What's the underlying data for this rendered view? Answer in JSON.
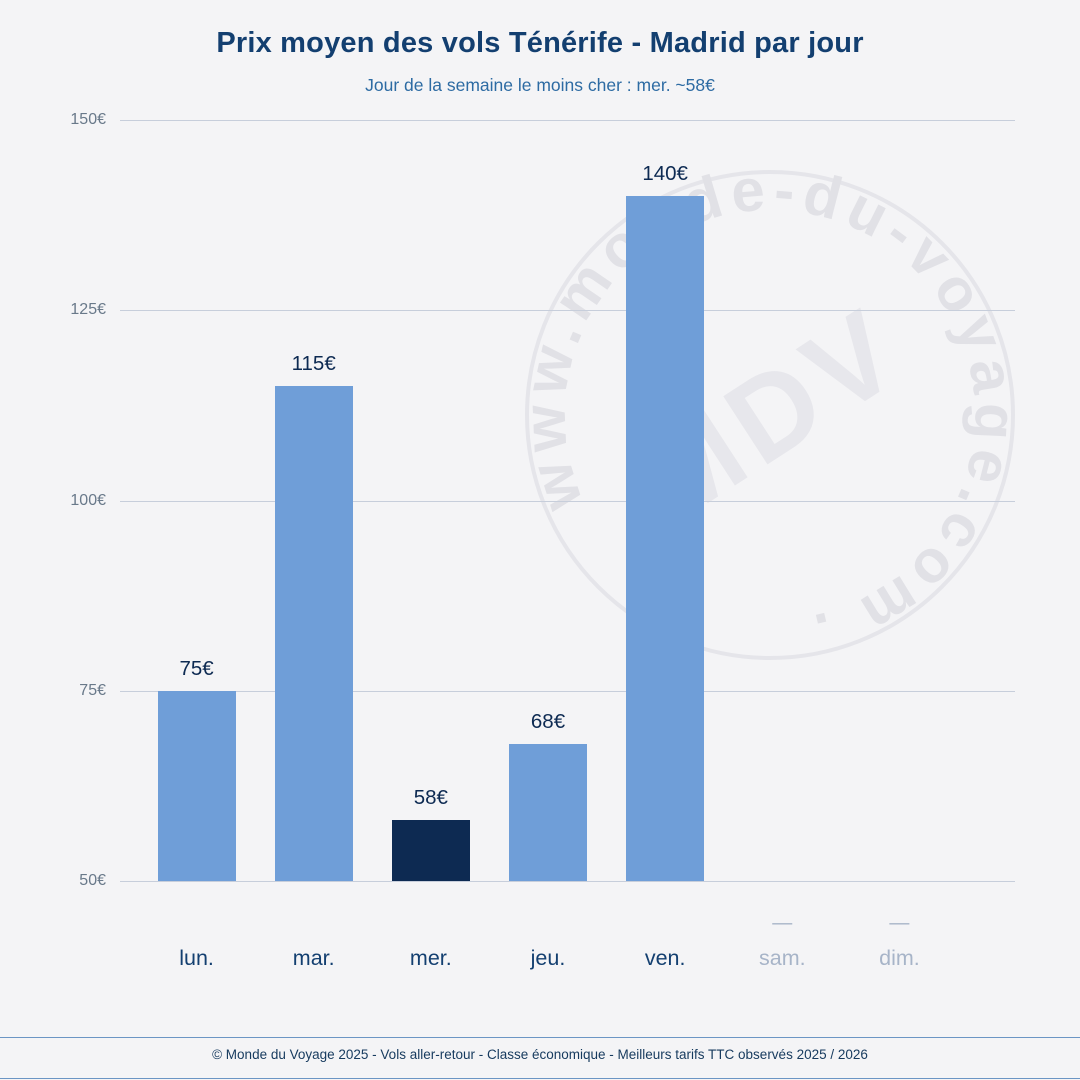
{
  "chart_data": {
    "type": "bar",
    "title": "Prix moyen des vols Ténérife - Madrid par jour",
    "subtitle": "Jour de la semaine le moins cher : mer. ~58€",
    "categories": [
      "lun.",
      "mar.",
      "mer.",
      "jeu.",
      "ven.",
      "sam.",
      "dim."
    ],
    "values": [
      75,
      115,
      58,
      68,
      140,
      null,
      null
    ],
    "value_labels": [
      "75€",
      "115€",
      "58€",
      "68€",
      "140€",
      "—",
      "—"
    ],
    "ylim": [
      50,
      150
    ],
    "yticks": [
      150,
      125,
      100,
      75,
      50
    ],
    "ytick_labels": [
      "150€",
      "125€",
      "100€",
      "75€",
      "50€"
    ],
    "xlabel": "",
    "ylabel": "",
    "grid": true,
    "legend": "none",
    "highlight_index": 2,
    "colors": {
      "background": "#f4f4f6",
      "bar": "#6f9ed8",
      "bar_highlight": "#0d2a52",
      "grid": "#c7cedb",
      "title": "#133f70",
      "subtitle": "#2d6ba3",
      "tick": "#69798a",
      "inactive": "#a7b4c8"
    }
  },
  "watermark": {
    "circle_text": "www.monde-du-voyage.com .",
    "center_text": "MDV"
  },
  "footer": {
    "text": "© Monde du Voyage 2025 - Vols aller-retour - Classe économique - Meilleurs tarifs TTC observés 2025 / 2026"
  }
}
